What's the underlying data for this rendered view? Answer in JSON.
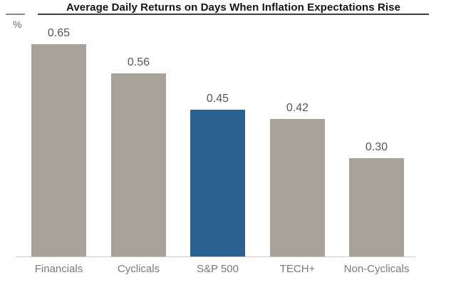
{
  "chart_data": {
    "type": "bar",
    "title": "Average Daily Returns on Days When Inflation Expectations Rise",
    "unit_label": "%",
    "categories": [
      "Financials",
      "Cyclicals",
      "S&P 500",
      "TECH+",
      "Non-Cyclicals"
    ],
    "values": [
      0.65,
      0.56,
      0.45,
      0.42,
      0.3
    ],
    "value_labels": [
      "0.65",
      "0.56",
      "0.45",
      "0.42",
      "0.30"
    ],
    "highlight_index": 2,
    "bar_color": "#a8a199",
    "highlight_color": "#2a6191",
    "axis_line_color": "#cccccc",
    "xlabel": "",
    "ylabel": "%",
    "ylim": [
      0,
      0.7
    ],
    "grid": false,
    "legend": false
  }
}
